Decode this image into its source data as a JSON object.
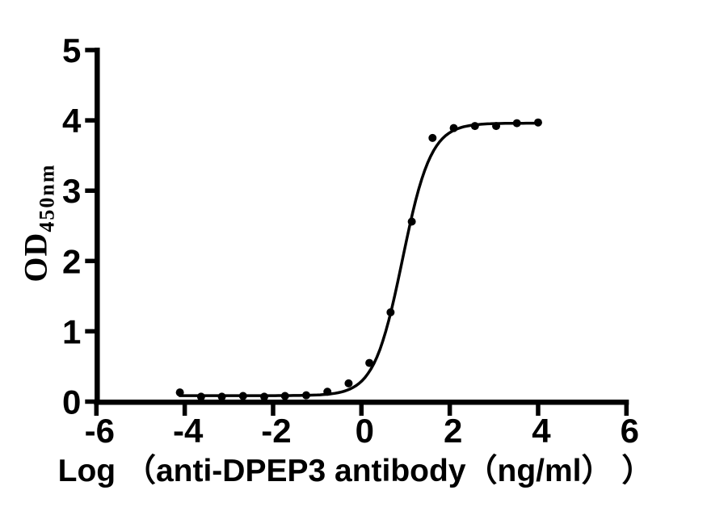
{
  "figure": {
    "background": "#ffffff",
    "ink_color": "#000000"
  },
  "axes": {
    "x_title": "Log （anti-DPEP3 antibody（ng/ml） ）",
    "y_title_main": "OD",
    "y_title_sub": "450nm"
  },
  "chart_data": {
    "type": "scatter",
    "title": "",
    "xlabel": "Log （anti-DPEP3 antibody（ng/ml） ）",
    "ylabel": "OD450nm",
    "xlim": [
      -6,
      6
    ],
    "ylim": [
      0,
      5
    ],
    "x_ticks": [
      "-6",
      "-4",
      "-2",
      "0",
      "2",
      "4",
      "6"
    ],
    "x_tick_values": [
      -6,
      -4,
      -2,
      0,
      2,
      4,
      6
    ],
    "y_ticks": [
      "0",
      "1",
      "2",
      "3",
      "4",
      "5"
    ],
    "y_tick_values": [
      0,
      1,
      2,
      3,
      4,
      5
    ],
    "grid": false,
    "legend": "none",
    "marker": {
      "shape": "circle",
      "radius_px": 5,
      "color": "#000000"
    },
    "line_color": "#000000",
    "points": {
      "x": [
        -4.11,
        -3.63,
        -3.16,
        -2.68,
        -2.2,
        -1.73,
        -1.25,
        -0.77,
        -0.29,
        0.18,
        0.66,
        1.14,
        1.61,
        2.09,
        2.57,
        3.05,
        3.52,
        4.0
      ],
      "y": [
        0.13,
        0.07,
        0.07,
        0.08,
        0.07,
        0.08,
        0.09,
        0.14,
        0.26,
        0.55,
        1.27,
        2.56,
        3.75,
        3.89,
        3.92,
        3.92,
        3.96,
        3.97
      ]
    },
    "fit_curve": {
      "model": "4PL",
      "bottom": 0.085,
      "top": 3.96,
      "logEC50": 0.93,
      "hill": 1.35,
      "x_range": [
        -4.11,
        4.0
      ]
    }
  }
}
